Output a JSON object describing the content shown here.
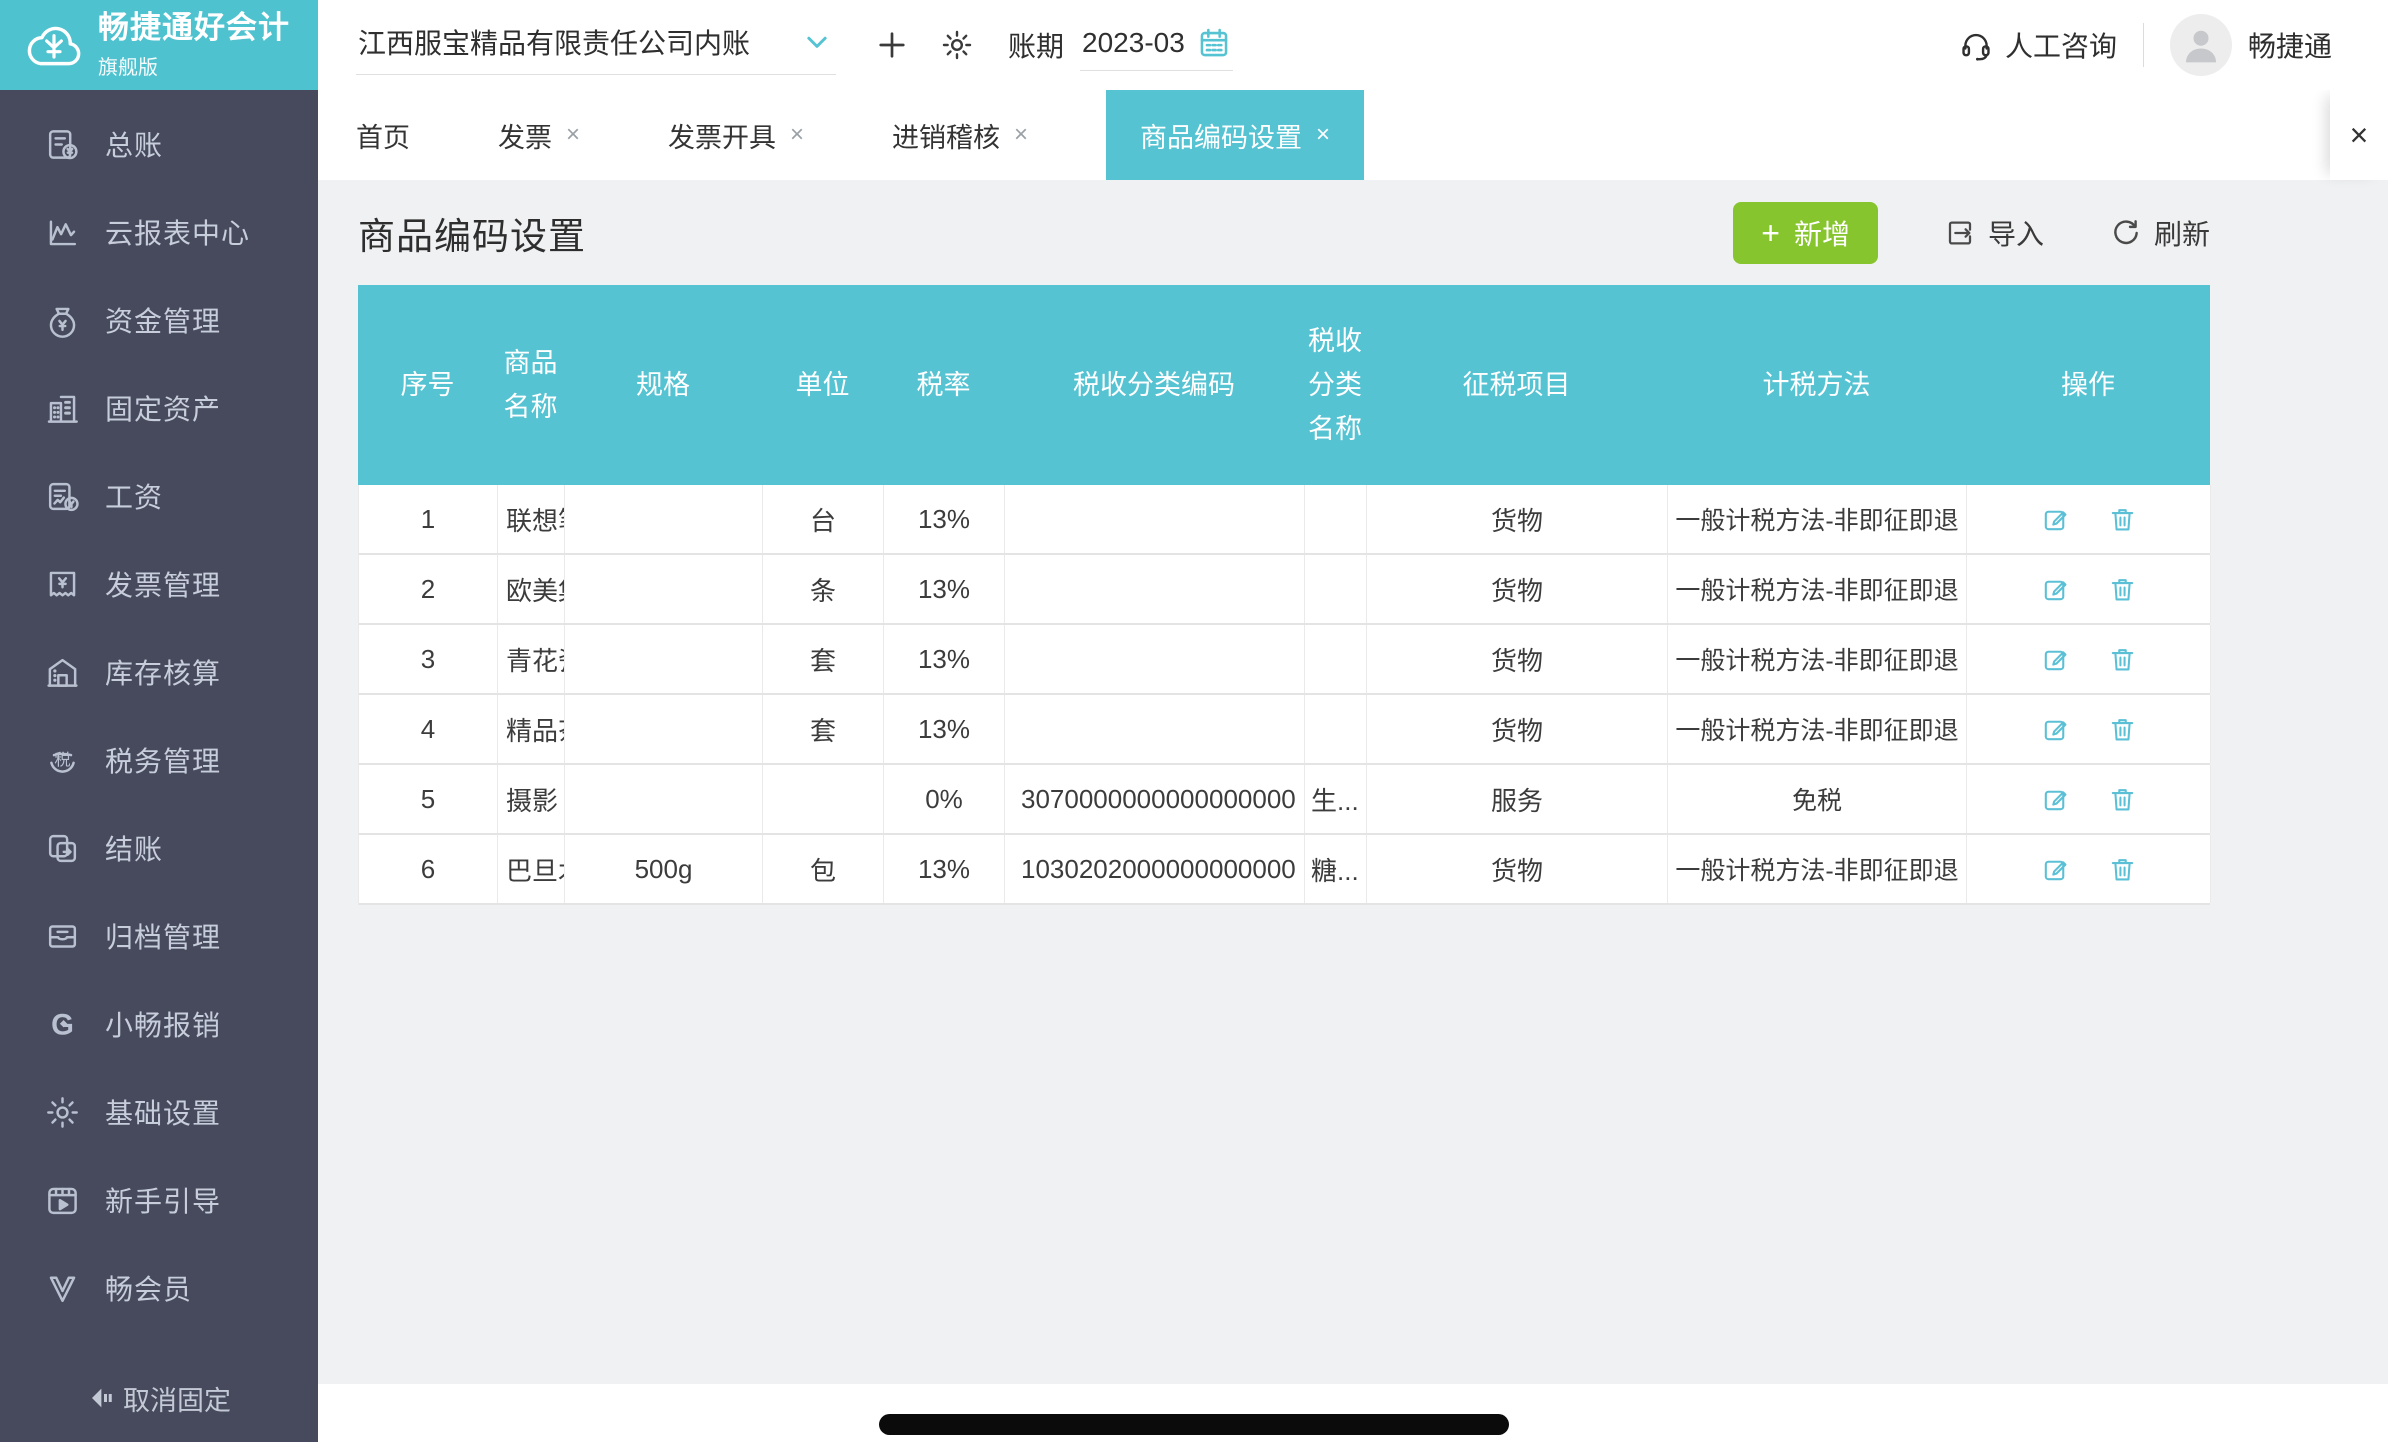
{
  "brand": {
    "name": "畅捷通好会计",
    "edition": "旗舰版",
    "logo_icon": "cloud-yuan-icon"
  },
  "topbar": {
    "company": "江西服宝精品有限责任公司内账",
    "period_label": "账期",
    "period_value": "2023-03",
    "help_label": "人工咨询",
    "user_name": "畅捷通"
  },
  "tabs": [
    {
      "id": "home",
      "label": "首页",
      "closable": false,
      "active": false
    },
    {
      "id": "invoice",
      "label": "发票",
      "closable": true,
      "active": false
    },
    {
      "id": "invoice-issue",
      "label": "发票开具",
      "closable": true,
      "active": false
    },
    {
      "id": "purchase-sale-audit",
      "label": "进销稽核",
      "closable": true,
      "active": false
    },
    {
      "id": "product-code-settings",
      "label": "商品编码设置",
      "closable": true,
      "active": true
    }
  ],
  "page": {
    "title": "商品编码设置",
    "add_label": "新增",
    "import_label": "导入",
    "refresh_label": "刷新"
  },
  "table": {
    "headers": [
      "序号",
      "商品名称",
      "规格",
      "单位",
      "税率",
      "税收分类编码",
      "税收分类名称",
      "征税项目",
      "计税方法",
      "操作"
    ],
    "ops_icons": [
      "edit-icon",
      "delete-icon"
    ],
    "rows": [
      {
        "no": "1",
        "name": "联想笔",
        "spec": "",
        "unit": "台",
        "rate": "13%",
        "code": "",
        "category": "",
        "tax_item": "货物",
        "method": "一般计税方法-非即征即退"
      },
      {
        "no": "2",
        "name": "欧美集",
        "spec": "",
        "unit": "条",
        "rate": "13%",
        "code": "",
        "category": "",
        "tax_item": "货物",
        "method": "一般计税方法-非即征即退"
      },
      {
        "no": "3",
        "name": "青花瓷",
        "spec": "",
        "unit": "套",
        "rate": "13%",
        "code": "",
        "category": "",
        "tax_item": "货物",
        "method": "一般计税方法-非即征即退"
      },
      {
        "no": "4",
        "name": "精品茶",
        "spec": "",
        "unit": "套",
        "rate": "13%",
        "code": "",
        "category": "",
        "tax_item": "货物",
        "method": "一般计税方法-非即征即退"
      },
      {
        "no": "5",
        "name": "摄影",
        "spec": "",
        "unit": "",
        "rate": "0%",
        "code": "3070000000000000000",
        "category": "生...",
        "tax_item": "服务",
        "method": "免税"
      },
      {
        "no": "6",
        "name": "巴旦木",
        "spec": "500g",
        "unit": "包",
        "rate": "13%",
        "code": "1030202000000000000",
        "category": "糖...",
        "tax_item": "货物",
        "method": "一般计税方法-非即征即退"
      }
    ]
  },
  "sidebar": {
    "items": [
      {
        "id": "general-ledger",
        "label": "总账",
        "icon": "ledger-icon"
      },
      {
        "id": "cloud-report-center",
        "label": "云报表中心",
        "icon": "report-icon"
      },
      {
        "id": "funds-management",
        "label": "资金管理",
        "icon": "moneybag-icon"
      },
      {
        "id": "fixed-assets",
        "label": "固定资产",
        "icon": "building-icon"
      },
      {
        "id": "payroll",
        "label": "工资",
        "icon": "payroll-icon"
      },
      {
        "id": "invoice-management",
        "label": "发票管理",
        "icon": "invoice-icon"
      },
      {
        "id": "inventory-accounting",
        "label": "库存核算",
        "icon": "warehouse-icon"
      },
      {
        "id": "tax-management",
        "label": "税务管理",
        "icon": "tax-icon"
      },
      {
        "id": "closing",
        "label": "结账",
        "icon": "settle-icon"
      },
      {
        "id": "archive-management",
        "label": "归档管理",
        "icon": "archive-icon"
      },
      {
        "id": "xiaochang-reimburse",
        "label": "小畅报销",
        "icon": "reimburse-icon"
      },
      {
        "id": "basic-settings",
        "label": "基础设置",
        "icon": "settings-gear-icon"
      },
      {
        "id": "beginner-guide",
        "label": "新手引导",
        "icon": "guide-icon"
      },
      {
        "id": "chang-member",
        "label": "畅会员",
        "icon": "member-icon"
      }
    ],
    "footer_label": "取消固定"
  },
  "ui": {
    "close_symbol": "×",
    "plus_symbol": "+"
  },
  "colors": {
    "accent_teal": "#56c3d3",
    "logo_teal": "#4fc2cf",
    "sidebar_bg": "#464a5c",
    "add_button_green": "#86c52d",
    "content_bg": "#f0f1f3",
    "icon_teal": "#5bc0d6",
    "home_indicator": "#0b0b0b"
  }
}
